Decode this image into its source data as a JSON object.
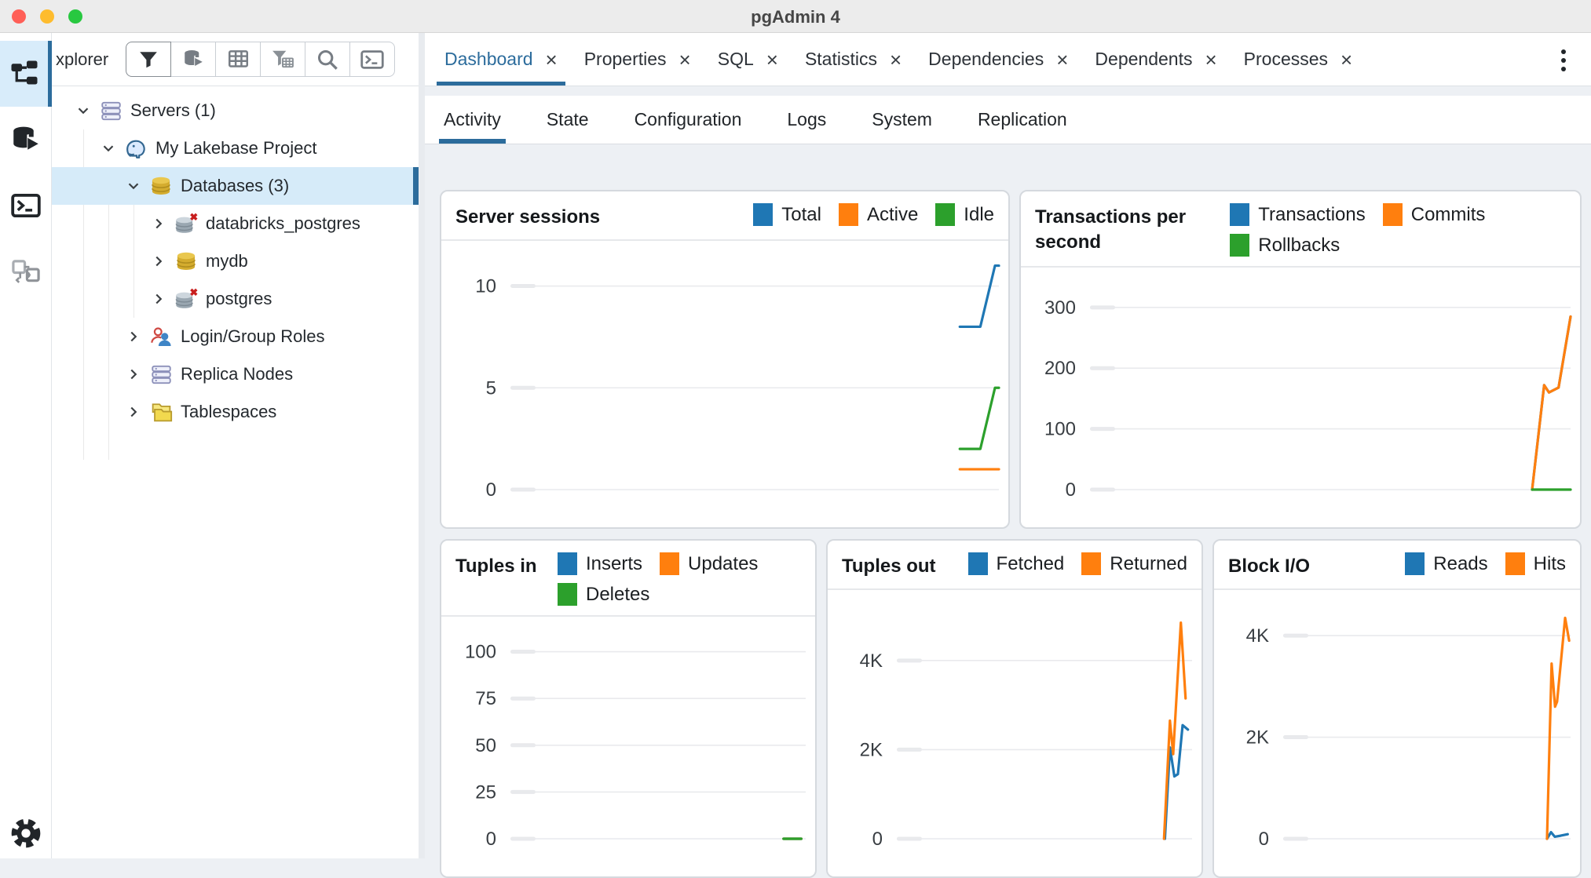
{
  "window": {
    "title": "pgAdmin 4"
  },
  "colors": {
    "accent": "#2c6c9c",
    "selection_bg": "#d6ebf9",
    "series_blue": "#1f77b4",
    "series_orange": "#ff7f0e",
    "series_green": "#2ca02c"
  },
  "activity_bar": {
    "items": [
      {
        "icon": "object-explorer-icon",
        "active": true
      },
      {
        "icon": "query-tool-icon",
        "active": false
      },
      {
        "icon": "psql-tool-icon",
        "active": false
      },
      {
        "icon": "erd-tool-icon",
        "active": false
      },
      {
        "icon": "gear-icon",
        "active": false
      }
    ]
  },
  "object_explorer": {
    "header": "xplorer",
    "toolbar": [
      "filter-icon",
      "query-tool-icon",
      "view-data-icon",
      "filtered-rows-icon",
      "search-icon",
      "psql-icon"
    ],
    "tree": [
      {
        "label": "Servers (1)",
        "level": 0,
        "expanded": true,
        "selected": false,
        "icon": "server-group"
      },
      {
        "label": "My Lakebase Project",
        "level": 1,
        "expanded": true,
        "selected": false,
        "icon": "postgres-server"
      },
      {
        "label": "Databases (3)",
        "level": 2,
        "expanded": true,
        "selected": true,
        "icon": "database"
      },
      {
        "label": "databricks_postgres",
        "level": 3,
        "expanded": false,
        "selected": false,
        "icon": "database-disconnected"
      },
      {
        "label": "mydb",
        "level": 3,
        "expanded": false,
        "selected": false,
        "icon": "database"
      },
      {
        "label": "postgres",
        "level": 3,
        "expanded": false,
        "selected": false,
        "icon": "database-disconnected"
      },
      {
        "label": "Login/Group Roles",
        "level": 2,
        "expanded": false,
        "selected": false,
        "icon": "login-group-roles"
      },
      {
        "label": "Replica Nodes",
        "level": 2,
        "expanded": false,
        "selected": false,
        "icon": "replica-nodes"
      },
      {
        "label": "Tablespaces",
        "level": 2,
        "expanded": false,
        "selected": false,
        "icon": "tablespaces"
      }
    ]
  },
  "tabs": {
    "items": [
      {
        "label": "Dashboard",
        "active": true,
        "close": "×"
      },
      {
        "label": "Properties",
        "active": false,
        "close": "×"
      },
      {
        "label": "SQL",
        "active": false,
        "close": "×"
      },
      {
        "label": "Statistics",
        "active": false,
        "close": "×"
      },
      {
        "label": "Dependencies",
        "active": false,
        "close": "×"
      },
      {
        "label": "Dependents",
        "active": false,
        "close": "×"
      },
      {
        "label": "Processes",
        "active": false,
        "close": "×"
      }
    ]
  },
  "subtabs": {
    "items": [
      {
        "label": "Activity",
        "active": true
      },
      {
        "label": "State",
        "active": false
      },
      {
        "label": "Configuration",
        "active": false
      },
      {
        "label": "Logs",
        "active": false
      },
      {
        "label": "System",
        "active": false
      },
      {
        "label": "Replication",
        "active": false
      }
    ]
  },
  "chart_data": [
    {
      "type": "line",
      "title": "Server sessions",
      "ylim": [
        0,
        11.6
      ],
      "grid": true,
      "legend_position": "top-right",
      "yticks": [
        {
          "label": "10",
          "value": 10
        },
        {
          "label": "5",
          "value": 5
        },
        {
          "label": "0",
          "value": 0
        }
      ],
      "series": [
        {
          "name": "Total",
          "color": "#1f77b4",
          "points": [
            [
              0.92,
              8
            ],
            [
              0.962,
              8
            ],
            [
              0.992,
              11
            ],
            [
              1,
              11
            ]
          ]
        },
        {
          "name": "Active",
          "color": "#ff7f0e",
          "points": [
            [
              0.92,
              1
            ],
            [
              1,
              1
            ]
          ]
        },
        {
          "name": "Idle",
          "color": "#2ca02c",
          "points": [
            [
              0.92,
              2
            ],
            [
              0.962,
              2
            ],
            [
              0.992,
              5
            ],
            [
              1,
              5
            ]
          ]
        }
      ]
    },
    {
      "type": "line",
      "title": "Transactions per second",
      "ylim": [
        0,
        345
      ],
      "grid": true,
      "legend_position": "top-right",
      "yticks": [
        {
          "label": "300",
          "value": 300
        },
        {
          "label": "200",
          "value": 200
        },
        {
          "label": "100",
          "value": 100
        },
        {
          "label": "0",
          "value": 0
        }
      ],
      "series": [
        {
          "name": "Transactions",
          "color": "#1f77b4",
          "points": [
            [
              0.92,
              0
            ],
            [
              0.945,
              172
            ],
            [
              0.955,
              160
            ],
            [
              0.975,
              168
            ],
            [
              1,
              285
            ]
          ]
        },
        {
          "name": "Commits",
          "color": "#ff7f0e",
          "points": [
            [
              0.92,
              0
            ],
            [
              0.945,
              172
            ],
            [
              0.955,
              160
            ],
            [
              0.975,
              168
            ],
            [
              1,
              285
            ]
          ]
        },
        {
          "name": "Rollbacks",
          "color": "#2ca02c",
          "points": [
            [
              0.92,
              0
            ],
            [
              1,
              0
            ]
          ]
        }
      ]
    },
    {
      "type": "line",
      "title": "Tuples in",
      "ylim": [
        0,
        112
      ],
      "grid": true,
      "legend_position": "top-right",
      "yticks": [
        {
          "label": "100",
          "value": 100
        },
        {
          "label": "75",
          "value": 75
        },
        {
          "label": "50",
          "value": 50
        },
        {
          "label": "25",
          "value": 25
        },
        {
          "label": "0",
          "value": 0
        }
      ],
      "series": [
        {
          "name": "Inserts",
          "color": "#1f77b4",
          "points": [
            [
              0.925,
              0
            ],
            [
              0.985,
              0
            ]
          ]
        },
        {
          "name": "Updates",
          "color": "#ff7f0e",
          "points": [
            [
              0.925,
              0
            ],
            [
              0.985,
              0
            ]
          ]
        },
        {
          "name": "Deletes",
          "color": "#2ca02c",
          "points": [
            [
              0.925,
              0
            ],
            [
              0.985,
              0
            ]
          ]
        }
      ]
    },
    {
      "type": "line",
      "title": "Tuples out",
      "ylim": [
        0,
        5300
      ],
      "grid": true,
      "legend_position": "top-right",
      "yticks": [
        {
          "label": "4K",
          "value": 4000
        },
        {
          "label": "2K",
          "value": 2000
        },
        {
          "label": "0",
          "value": 0
        }
      ],
      "series": [
        {
          "name": "Fetched",
          "color": "#1f77b4",
          "points": [
            [
              0.908,
              0
            ],
            [
              0.925,
              2050
            ],
            [
              0.94,
              1400
            ],
            [
              0.952,
              1450
            ],
            [
              0.968,
              2550
            ],
            [
              0.986,
              2450
            ]
          ]
        },
        {
          "name": "Returned",
          "color": "#ff7f0e",
          "points": [
            [
              0.905,
              0
            ],
            [
              0.925,
              2650
            ],
            [
              0.936,
              1900
            ],
            [
              0.962,
              4850
            ],
            [
              0.978,
              3150
            ]
          ]
        }
      ]
    },
    {
      "type": "line",
      "title": "Block I/O",
      "ylim": [
        0,
        4650
      ],
      "grid": true,
      "legend_position": "top-right",
      "yticks": [
        {
          "label": "4K",
          "value": 4000
        },
        {
          "label": "2K",
          "value": 2000
        },
        {
          "label": "0",
          "value": 0
        }
      ],
      "series": [
        {
          "name": "Reads",
          "color": "#1f77b4",
          "points": [
            [
              0.918,
              0
            ],
            [
              0.932,
              130
            ],
            [
              0.945,
              40
            ],
            [
              0.965,
              60
            ],
            [
              0.99,
              90
            ]
          ]
        },
        {
          "name": "Hits",
          "color": "#ff7f0e",
          "points": [
            [
              0.918,
              0
            ],
            [
              0.934,
              3450
            ],
            [
              0.946,
              2600
            ],
            [
              0.953,
              2700
            ],
            [
              0.981,
              4350
            ],
            [
              0.995,
              3900
            ]
          ]
        }
      ]
    }
  ]
}
